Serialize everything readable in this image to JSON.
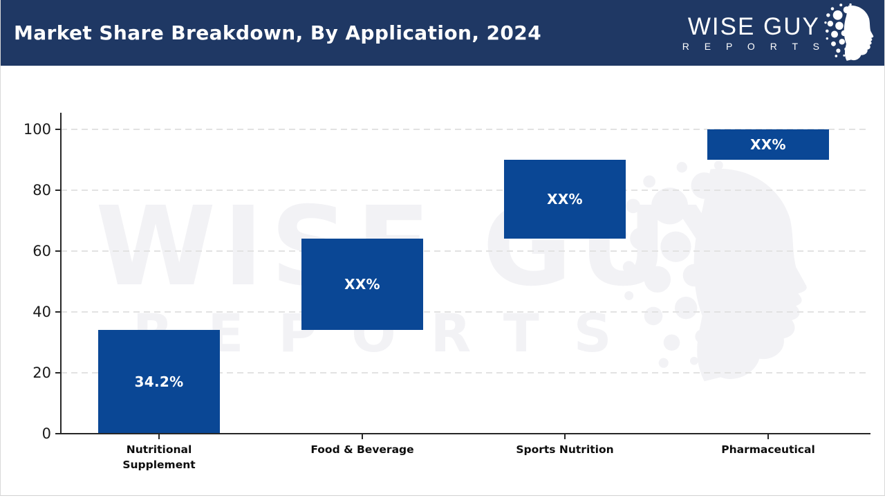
{
  "header": {
    "title": "Market Share Breakdown, By Application, 2024"
  },
  "logo": {
    "name": "WISE GUY",
    "subtitle": "R E P O R T S",
    "head_icon": "dotted-head-profile"
  },
  "watermark": {
    "line1": "WISE GUY",
    "line2": "REPORTS",
    "head_icon": "dotted-head-profile"
  },
  "colors": {
    "header_bg": "#1f3864",
    "bar_fill": "#0a4795",
    "bar_label": "#ffffff",
    "grid": "#e2e2e2",
    "axis": "#262626",
    "tick_label": "#1a1a1a",
    "category_label": "#0d0d0d",
    "watermark": "#f2f2f5",
    "page_border": "#d9d9d9"
  },
  "chart_data": {
    "type": "bar",
    "subtype": "waterfall (floating segments)",
    "title": "Market Share Breakdown, By Application, 2024",
    "categories": [
      "Nutritional\nSupplement",
      "Food & Beverage",
      "Sports Nutrition",
      "Pharmaceutical"
    ],
    "segments": [
      {
        "category": "Nutritional\nSupplement",
        "start": 0,
        "end": 34.2,
        "label": "34.2%"
      },
      {
        "category": "Food & Beverage",
        "start": 34.2,
        "end": 64,
        "label": "XX%"
      },
      {
        "category": "Sports Nutrition",
        "start": 64,
        "end": 90,
        "label": "XX%"
      },
      {
        "category": "Pharmaceutical",
        "start": 90,
        "end": 100,
        "label": "XX%"
      }
    ],
    "xlabel": "",
    "ylabel": "",
    "ylim": [
      0,
      100
    ],
    "yticks": [
      0,
      20,
      40,
      60,
      80,
      100
    ],
    "grid": "horizontal dashed lines at y ticks",
    "legend": "none"
  }
}
